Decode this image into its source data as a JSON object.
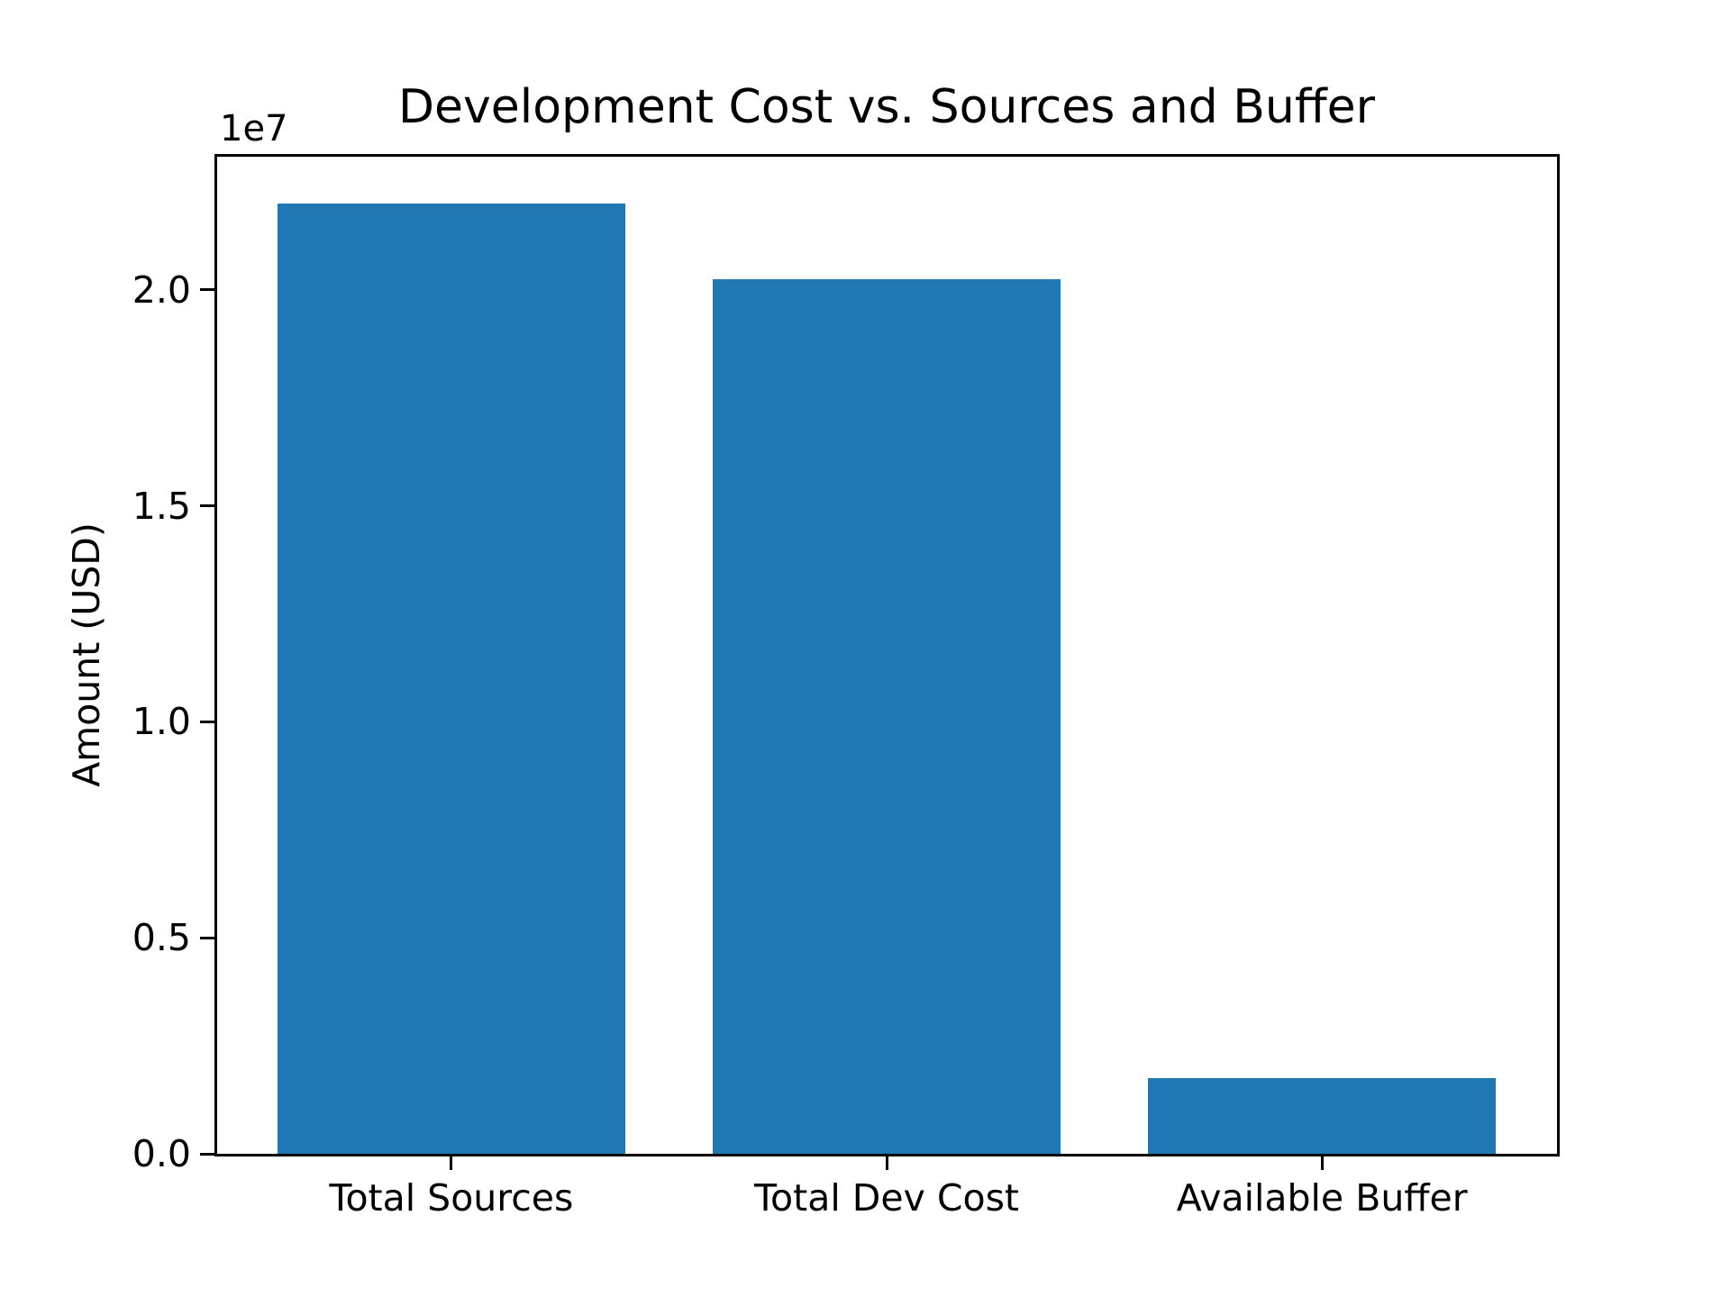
{
  "chart_data": {
    "type": "bar",
    "title": "Development Cost vs. Sources and Buffer",
    "ylabel": "Amount (USD)",
    "xlabel": "",
    "offset_label": "1e7",
    "categories": [
      "Total Sources",
      "Total Dev Cost",
      "Available Buffer"
    ],
    "values": [
      22000000,
      20250000,
      1750000
    ],
    "yticks": {
      "values": [
        0,
        5000000,
        10000000,
        15000000,
        20000000
      ],
      "labels": [
        "0.0",
        "0.5",
        "1.0",
        "1.5",
        "2.0"
      ]
    },
    "ylim": [
      0,
      23100000
    ],
    "grid": false,
    "legend": null,
    "colors": {
      "bar": "#1f77b4",
      "axis": "#000000",
      "background": "#ffffff"
    }
  }
}
